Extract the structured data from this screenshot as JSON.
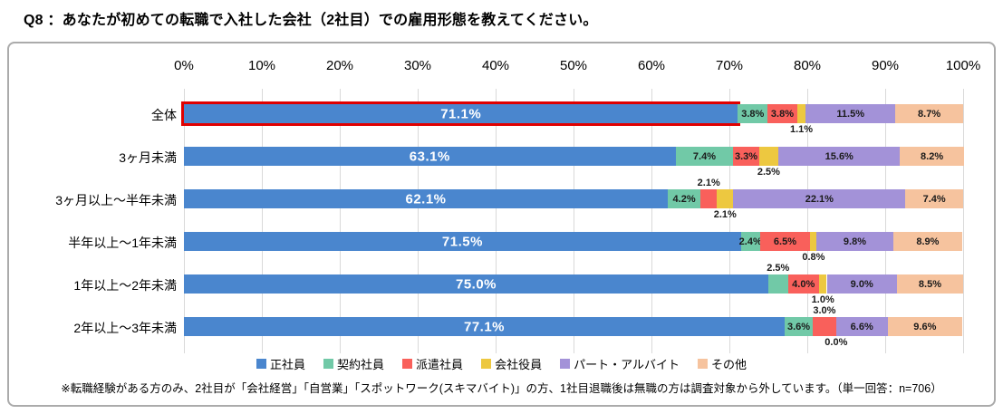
{
  "title": "Q8 ：あなたが初めての転職で入社した会社（2社目）での雇用形態を教えてください。",
  "footnote": "※転職経験がある方のみ、2社目が「会社経営」「自営業」「スポットワーク(スキマバイト)」の方、1社目退職後は無職の方は調査対象から外しています。（単一回答：n=706）",
  "chart_data": {
    "type": "bar",
    "orientation": "horizontal",
    "stacked": true,
    "xlim": [
      0,
      100
    ],
    "x_ticks": [
      "0%",
      "10%",
      "20%",
      "30%",
      "40%",
      "50%",
      "60%",
      "70%",
      "80%",
      "90%",
      "100%"
    ],
    "grid": true,
    "legend_position": "bottom",
    "categories": [
      "全体",
      "3ヶ月未満",
      "3ヶ月以上～半年未満",
      "半年以上～1年未満",
      "1年以上～2年未満",
      "2年以上～3年未満"
    ],
    "series": [
      {
        "name": "正社員",
        "color": "#4a86ce",
        "values": [
          71.1,
          63.1,
          62.1,
          71.5,
          75.0,
          77.1
        ]
      },
      {
        "name": "契約社員",
        "color": "#71c9a7",
        "values": [
          3.8,
          7.4,
          4.2,
          2.4,
          2.5,
          3.6
        ]
      },
      {
        "name": "派遣社員",
        "color": "#f9605b",
        "values": [
          3.8,
          3.3,
          2.1,
          6.5,
          4.0,
          3.0
        ]
      },
      {
        "name": "会社役員",
        "color": "#edc840",
        "values": [
          1.1,
          2.5,
          2.1,
          0.8,
          1.0,
          0.0
        ]
      },
      {
        "name": "パート・アルバイト",
        "color": "#a392d8",
        "values": [
          11.5,
          15.6,
          22.1,
          9.8,
          9.0,
          6.6
        ]
      },
      {
        "name": "その他",
        "color": "#f6c39e",
        "values": [
          8.7,
          8.2,
          7.4,
          8.9,
          8.5,
          9.6
        ]
      }
    ],
    "label_placements": [
      [
        "inside",
        "inside",
        "inside",
        "below",
        "inside",
        "inside"
      ],
      [
        "inside",
        "inside",
        "inside",
        "below",
        "inside",
        "inside"
      ],
      [
        "inside",
        "inside",
        "above",
        "below",
        "inside",
        "inside"
      ],
      [
        "inside",
        "inside",
        "inside",
        "below",
        "inside",
        "inside"
      ],
      [
        "inside",
        "above",
        "inside",
        "below",
        "inside",
        "inside"
      ],
      [
        "inside",
        "inside",
        "above",
        "below",
        "inside",
        "inside"
      ]
    ],
    "highlight": {
      "row": 0,
      "series": 0,
      "border_color": "#e00000"
    }
  }
}
